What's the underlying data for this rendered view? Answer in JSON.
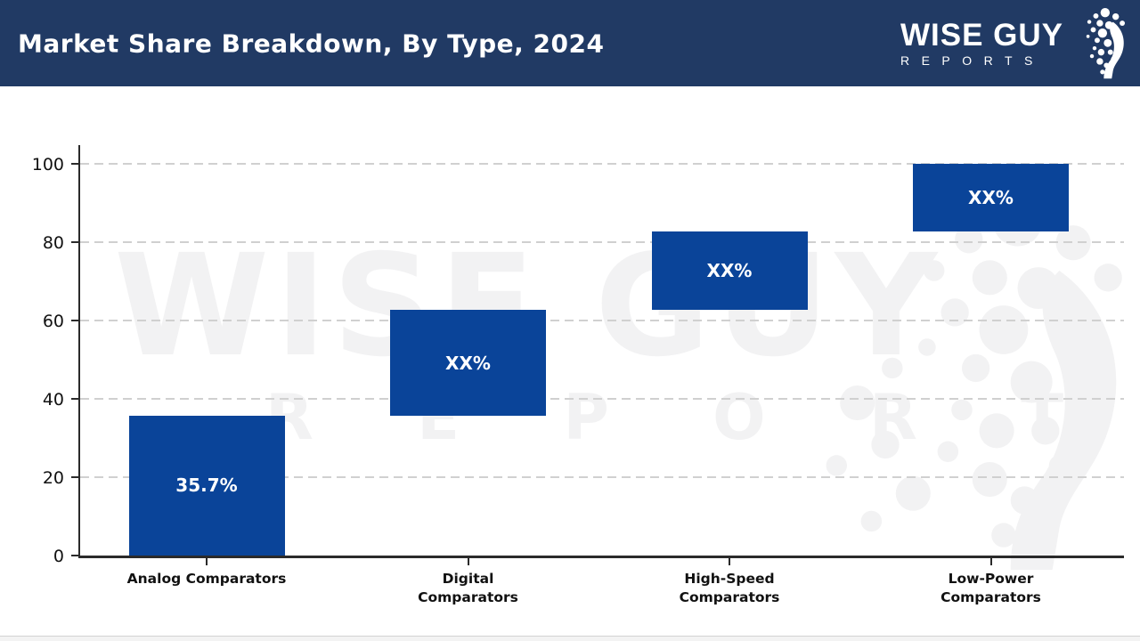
{
  "header": {
    "title": "Market Share Breakdown, By Type, 2024",
    "bg_color": "#213a64",
    "logo": {
      "line1": "WISE GUY",
      "line2": "REPORTS"
    }
  },
  "watermark": {
    "line1": "WISE GUY",
    "line2": "R E P O R T S"
  },
  "chart_data": {
    "type": "bar",
    "subtype": "waterfall-stepped-segments",
    "title": "Market Share Breakdown, By Type, 2024",
    "categories": [
      "Analog Comparators",
      "Digital\nComparators",
      "High-Speed\nComparators",
      "Low-Power\nComparators"
    ],
    "series": [
      {
        "name": "Market share",
        "segments": [
          {
            "category": "Analog Comparators",
            "start": 0,
            "end": 35.7,
            "label": "35.7%"
          },
          {
            "category": "Digital Comparators",
            "start": 35.7,
            "end": 62.7,
            "label": "XX%"
          },
          {
            "category": "High-Speed Comparators",
            "start": 62.7,
            "end": 82.7,
            "label": "XX%"
          },
          {
            "category": "Low-Power Comparators",
            "start": 82.7,
            "end": 100,
            "label": "XX%"
          }
        ]
      }
    ],
    "ylim": [
      0,
      100
    ],
    "yticks": [
      0,
      20,
      40,
      60,
      80,
      100
    ],
    "xlabel": "",
    "ylabel": "",
    "grid": "horizontal-dashed",
    "legend": "none",
    "bar_color": "#0a4499",
    "bar_label_color": "#ffffff",
    "axis_color": "#2a2a2a",
    "grid_color": "#d0d0d0"
  }
}
